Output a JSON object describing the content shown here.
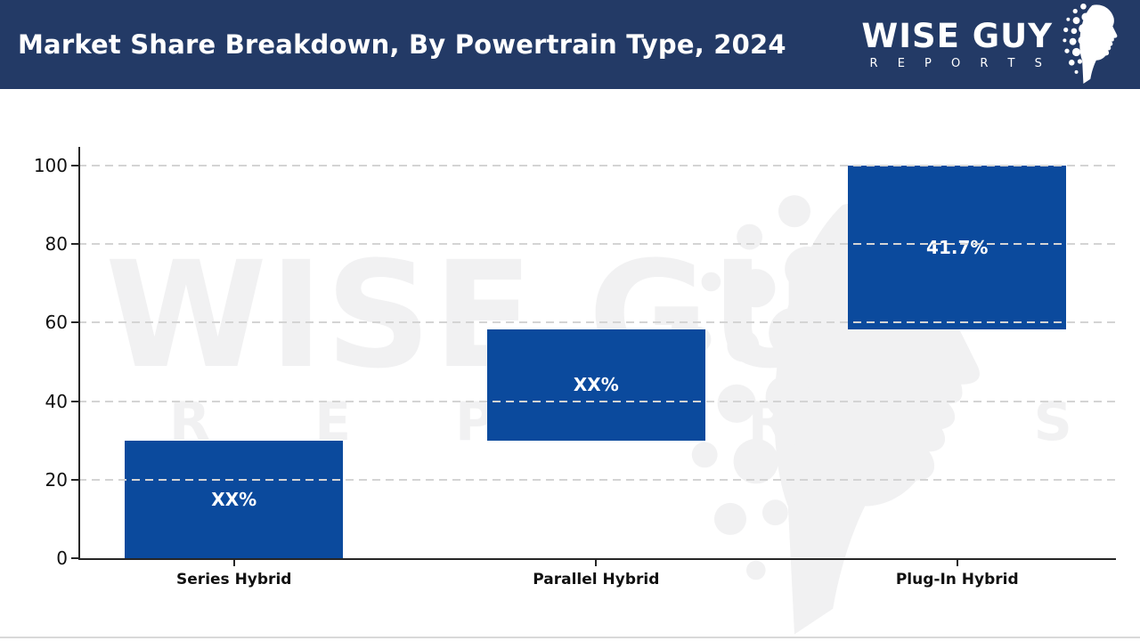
{
  "header": {
    "title": "Market Share Breakdown, By Powertrain Type, 2024",
    "logo": {
      "name": "WISE GUY",
      "sub": "R E P O R T S"
    }
  },
  "watermark": {
    "name": "WISE GUY",
    "sub": "R E P O R T S"
  },
  "colors": {
    "header_bg": "#233a66",
    "bar": "#0b4a9d",
    "grid": "#d4d4d4",
    "axis": "#262626",
    "watermark": "#f1f1f2",
    "bar_label": "#ffffff",
    "footer_line": "#d9d9d9"
  },
  "chart_data": {
    "type": "bar",
    "subtype": "stacked-percentage-waterfall",
    "title": "Market Share Breakdown, By Powertrain Type, 2024",
    "categories": [
      "Series Hybrid",
      "Parallel Hybrid",
      "Plug-In Hybrid"
    ],
    "series": [
      {
        "name": "Series Hybrid",
        "start": 0,
        "end": 30,
        "value": 30,
        "label": "XX%"
      },
      {
        "name": "Parallel Hybrid",
        "start": 30,
        "end": 58.3,
        "value": 28.3,
        "label": "XX%"
      },
      {
        "name": "Plug-In Hybrid",
        "start": 58.3,
        "end": 100,
        "value": 41.7,
        "label": "41.7%"
      }
    ],
    "xlabel": "",
    "ylabel": "",
    "yticks": [
      0,
      20,
      40,
      60,
      80,
      100
    ],
    "ylim": [
      0,
      104.8
    ],
    "grid": "horizontal-dashed",
    "legend": "none"
  }
}
